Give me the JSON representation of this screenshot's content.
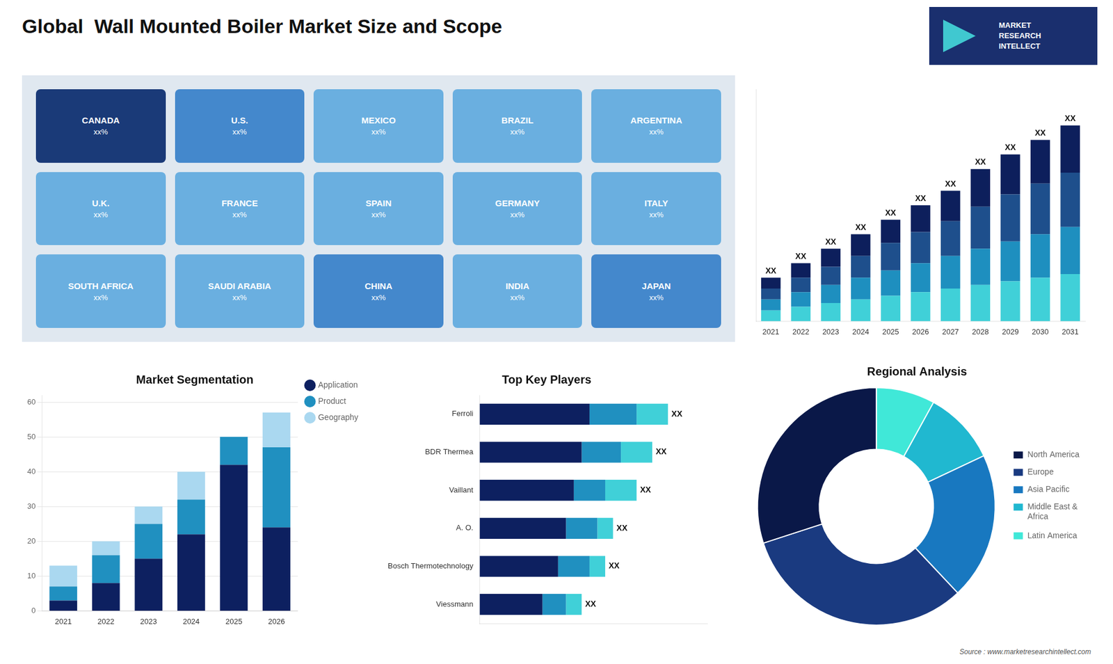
{
  "title": "Global  Wall Mounted Boiler Market Size and Scope",
  "annotations": {
    "logo": "MARKET\nRESEARCH\nINTELLECT",
    "source": "Source : www.marketresearchintellect.com"
  },
  "chart_data": [
    {
      "type": "map",
      "categories": [
        "CANADA",
        "U.S.",
        "MEXICO",
        "BRAZIL",
        "ARGENTINA",
        "U.K.",
        "FRANCE",
        "SPAIN",
        "GERMANY",
        "ITALY",
        "SOUTH AFRICA",
        "SAUDI ARABIA",
        "CHINA",
        "INDIA",
        "JAPAN"
      ],
      "value_labels": [
        "xx%",
        "xx%",
        "xx%",
        "xx%",
        "xx%",
        "xx%",
        "xx%",
        "xx%",
        "xx%",
        "xx%",
        "xx%",
        "xx%",
        "xx%",
        "xx%",
        "xx%"
      ],
      "colors": [
        "#1a3a78",
        "#4488cc",
        "#6aafe0",
        "#6aafe0",
        "#6aafe0",
        "#6aafe0",
        "#6aafe0",
        "#6aafe0",
        "#6aafe0",
        "#6aafe0",
        "#6aafe0",
        "#6aafe0",
        "#4488cc",
        "#6aafe0",
        "#4488cc"
      ]
    },
    {
      "type": "bar",
      "stacked": true,
      "grid": false,
      "tick_labels": "x",
      "categories": [
        "2021",
        "2022",
        "2023",
        "2024",
        "2025",
        "2026",
        "2027",
        "2028",
        "2029",
        "2030",
        "2031"
      ],
      "series": [
        {
          "color": "#40d0d8",
          "values": [
            1.5,
            2.0,
            2.5,
            3.0,
            3.5,
            4.0,
            4.5,
            5.0,
            5.5,
            6.0,
            6.5
          ]
        },
        {
          "color": "#1e8fbf",
          "values": [
            1.5,
            2.0,
            2.5,
            3.0,
            3.5,
            4.0,
            4.5,
            5.0,
            5.5,
            6.0,
            6.5
          ]
        },
        {
          "color": "#1e4f8c",
          "values": [
            1.5,
            2.0,
            2.5,
            3.0,
            3.8,
            4.3,
            4.8,
            5.8,
            6.5,
            7.0,
            7.5
          ]
        },
        {
          "color": "#0d1f5c",
          "values": [
            1.5,
            2.0,
            2.5,
            3.0,
            3.2,
            3.7,
            4.2,
            5.2,
            5.5,
            6.0,
            6.5
          ]
        }
      ],
      "value_labels": [
        "XX",
        "XX",
        "XX",
        "XX",
        "XX",
        "XX",
        "XX",
        "XX",
        "XX",
        "XX",
        "XX"
      ],
      "ylim": [
        0,
        32
      ]
    },
    {
      "type": "bar",
      "stacked": true,
      "grid": true,
      "legend": "right",
      "title": "Market Segmentation",
      "categories": [
        "2021",
        "2022",
        "2023",
        "2024",
        "2025",
        "2026"
      ],
      "series": [
        {
          "name": "Application",
          "color": "#0d2060",
          "marker": "circle",
          "values": [
            3,
            8,
            15,
            22,
            42,
            24
          ]
        },
        {
          "name": "Product",
          "color": "#2090c0",
          "marker": "circle",
          "values": [
            4,
            8,
            10,
            10,
            8,
            23
          ]
        },
        {
          "name": "Geography",
          "color": "#aad8f0",
          "marker": "circle",
          "values": [
            6,
            4,
            5,
            8,
            0,
            10
          ]
        }
      ],
      "ylim": [
        0,
        62
      ],
      "yticks": [
        0,
        10,
        20,
        30,
        40,
        50,
        60
      ]
    },
    {
      "type": "bar",
      "stacked": true,
      "grid": false,
      "orientation": "horizontal",
      "tick_labels": "y",
      "title": "Top Key Players",
      "categories": [
        "Ferroli",
        "BDR Thermea",
        "Vaillant",
        "A. O.",
        "Bosch Thermotechnology",
        "Viessmann"
      ],
      "series": [
        {
          "color": "#0d2060",
          "values": [
            7.0,
            6.5,
            6.0,
            5.5,
            5.0,
            4.0
          ]
        },
        {
          "color": "#2090c0",
          "values": [
            3.0,
            2.5,
            2.0,
            2.0,
            2.0,
            1.5
          ]
        },
        {
          "color": "#40d0d8",
          "values": [
            2.0,
            2.0,
            2.0,
            1.0,
            1.0,
            1.0
          ]
        }
      ],
      "value_labels": [
        "XX",
        "XX",
        "XX",
        "XX",
        "XX",
        "XX"
      ],
      "xlim": [
        0,
        14.5
      ]
    },
    {
      "type": "doughnut",
      "legend": "right",
      "title": "Regional Analysis",
      "categories": [
        "Latin America",
        "Middle East &\nAfrica",
        "Asia Pacific",
        "Europe",
        "North America"
      ],
      "values": [
        8,
        10,
        20,
        32,
        30
      ],
      "colors": [
        "#40e8d8",
        "#20b8d0",
        "#1878c0",
        "#1a3a80",
        "#0a1848"
      ]
    }
  ]
}
